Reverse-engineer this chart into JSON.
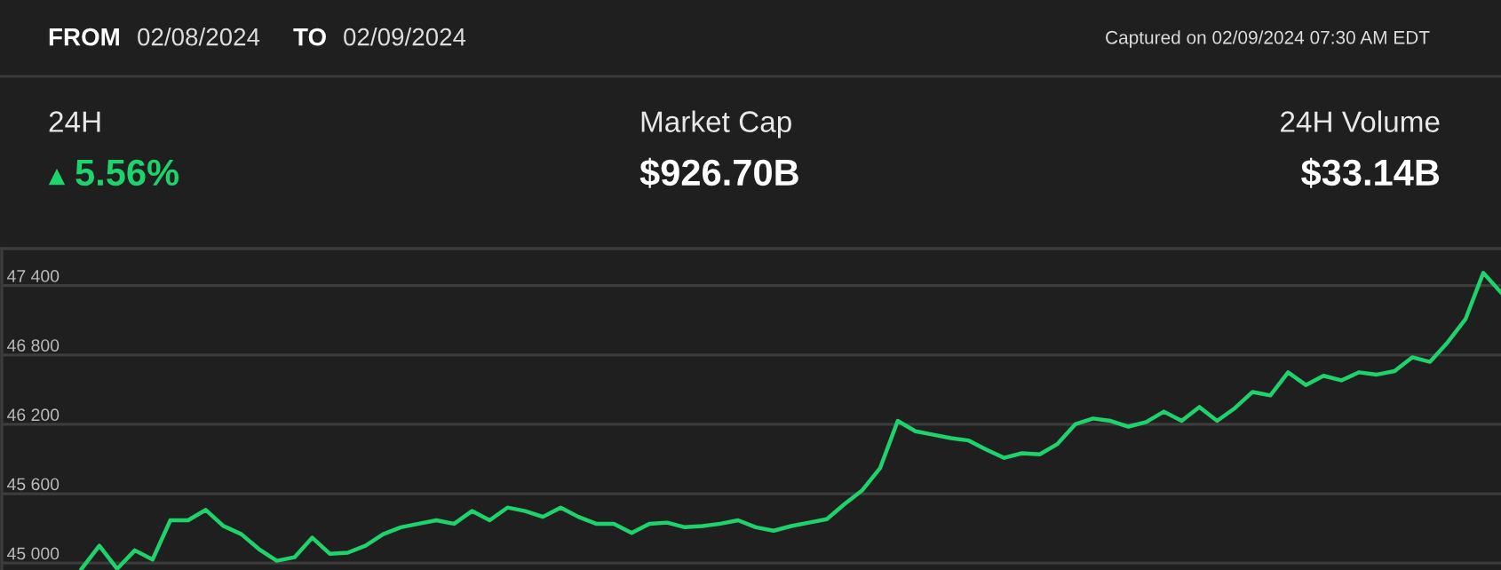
{
  "chart_data": {
    "type": "line",
    "annotations": [
      "FROM",
      "02/08/2024",
      "TO",
      "02/09/2024",
      "Captured on 02/09/2024 07:30 AM EDT",
      "24H",
      "5.56%",
      "Market Cap",
      "$926.70B",
      "24H Volume",
      "$33.14B"
    ],
    "categories": [
      null,
      null,
      null,
      null,
      null,
      null,
      null,
      null,
      null,
      null,
      null,
      null,
      null,
      null,
      null,
      null,
      null,
      null,
      null,
      null,
      null,
      null,
      null,
      null,
      null,
      null,
      null,
      null,
      null,
      null,
      null,
      null,
      null,
      null,
      null,
      null,
      null,
      null,
      null,
      null,
      null,
      null,
      null,
      null,
      null,
      null,
      null,
      null,
      null,
      null,
      null,
      null,
      null,
      null,
      null,
      null,
      null,
      null,
      null,
      null,
      null,
      null,
      null,
      null,
      null,
      null,
      null,
      null,
      null,
      null,
      null,
      null,
      null,
      null,
      null,
      null,
      null,
      null,
      null,
      null,
      null
    ],
    "series": [
      {
        "color": "#1ed36c",
        "values": [
          44950,
          45150,
          44950,
          45110,
          45030,
          45370,
          45370,
          45460,
          45320,
          45250,
          45120,
          45020,
          45050,
          45220,
          45080,
          45090,
          45150,
          45250,
          45310,
          45340,
          45370,
          45340,
          45450,
          45370,
          45480,
          45450,
          45400,
          45480,
          45400,
          45340,
          45340,
          45260,
          45340,
          45350,
          45310,
          45320,
          45340,
          45370,
          45310,
          45280,
          45320,
          45350,
          45380,
          45510,
          45630,
          45820,
          46230,
          46140,
          46110,
          46080,
          46060,
          45980,
          45910,
          45950,
          45940,
          46030,
          46200,
          46250,
          46230,
          46180,
          46220,
          46310,
          46230,
          46350,
          46230,
          46340,
          46480,
          46450,
          46650,
          46540,
          46620,
          46580,
          46650,
          46630,
          46660,
          46780,
          46740,
          46910,
          47110,
          47510,
          47340
        ]
      }
    ],
    "ylim": [
      44940,
      47720
    ],
    "yticks": [
      {
        "value": 45000,
        "label": "45 000"
      },
      {
        "value": 45600,
        "label": "45 600"
      },
      {
        "value": 46200,
        "label": "46 200"
      },
      {
        "value": 46800,
        "label": "46 800"
      },
      {
        "value": 47400,
        "label": "47 400"
      }
    ],
    "grid": "y",
    "marker": "none",
    "line_style": "solid",
    "tick_labels": "y"
  }
}
